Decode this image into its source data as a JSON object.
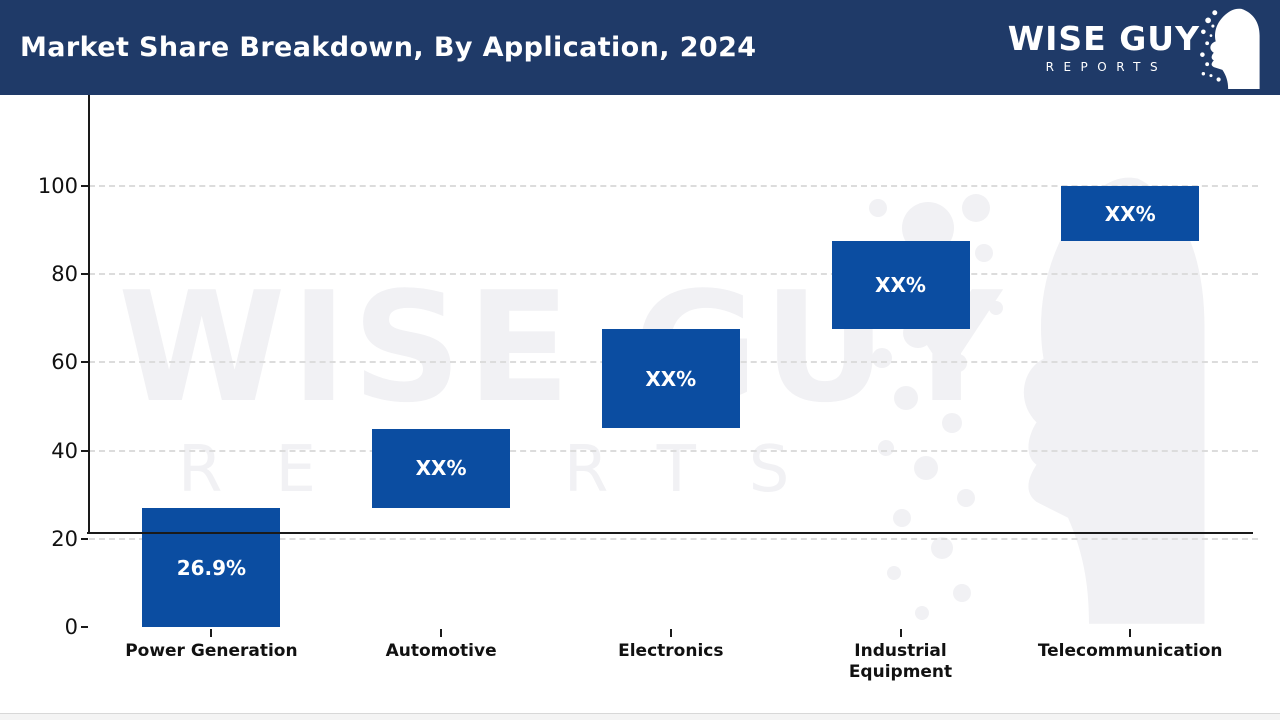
{
  "header": {
    "title": "Market Share Breakdown, By Application, 2024",
    "bg_color": "#1F3A68",
    "logo": {
      "line1": "WISE GUY",
      "line2": "REPORTS"
    }
  },
  "watermark": {
    "line1": "WISE GUY",
    "line2": "REPORTS"
  },
  "chart_data": {
    "type": "bar",
    "subtype": "waterfall",
    "title": "Market Share Breakdown, By Application, 2024",
    "categories": [
      "Power Generation",
      "Automotive",
      "Electronics",
      "Industrial\nEquipment",
      "Telecommunication"
    ],
    "segments": [
      {
        "category": "Power Generation",
        "start": 0,
        "end": 26.9,
        "label": "26.9%"
      },
      {
        "category": "Automotive",
        "start": 26.9,
        "end": 45.0,
        "label": "XX%"
      },
      {
        "category": "Electronics",
        "start": 45.0,
        "end": 67.5,
        "label": "XX%"
      },
      {
        "category": "Industrial Equipment",
        "start": 67.5,
        "end": 87.5,
        "label": "XX%"
      },
      {
        "category": "Telecommunication",
        "start": 87.5,
        "end": 100.0,
        "label": "XX%"
      }
    ],
    "yticks": [
      0,
      20,
      40,
      60,
      80,
      100
    ],
    "ylim": [
      0,
      105
    ],
    "grid": "horizontal-dashed",
    "legend": "none",
    "bar_color": "#0B4DA1",
    "bar_label_color": "#FFFFFF",
    "axis_color": "#1A1A1A",
    "grid_color": "#DCDCDC",
    "watermark_color": "#F1F1F4"
  }
}
